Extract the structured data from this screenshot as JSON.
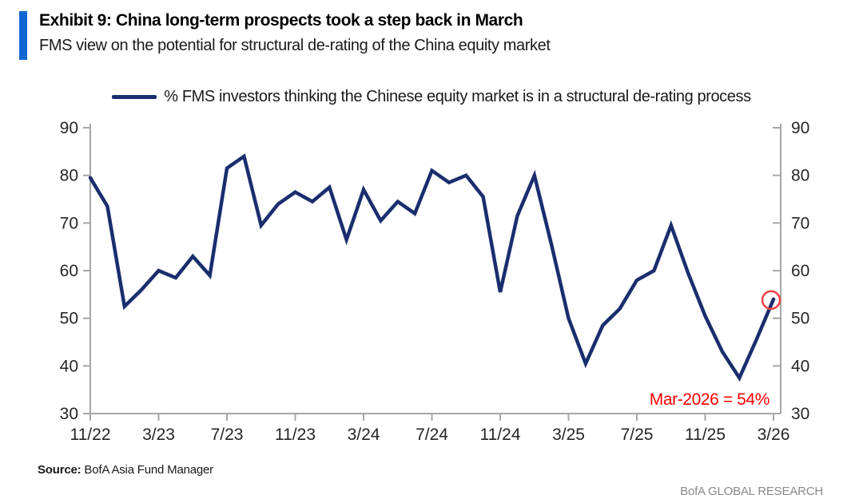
{
  "header": {
    "exhibit_title": "Exhibit 9: China long-term prospects took a step back in March",
    "subtitle": "FMS view on the potential for structural de-rating of the China equity market",
    "accent_color": "#1266D4"
  },
  "legend": {
    "label": "% FMS investors thinking the Chinese equity market is in a structural de-rating process",
    "line_color": "#1A2E6E"
  },
  "chart_data": {
    "type": "line",
    "title": "",
    "series_name": "% FMS investors thinking the Chinese equity market is in a structural de-rating process",
    "x": [
      "11/22",
      "12/22",
      "1/23",
      "2/23",
      "3/23",
      "4/23",
      "5/23",
      "6/23",
      "7/23",
      "8/23",
      "9/23",
      "10/23",
      "11/23",
      "12/23",
      "1/24",
      "2/24",
      "3/24",
      "4/24",
      "5/24",
      "6/24",
      "7/24",
      "8/24",
      "9/24",
      "10/24",
      "11/24",
      "12/24",
      "1/25",
      "2/25",
      "3/25",
      "4/25",
      "5/25",
      "6/25",
      "7/25",
      "8/25",
      "9/25",
      "10/25",
      "11/25",
      "12/25",
      "1/26",
      "2/26",
      "3/26"
    ],
    "values": [
      79.5,
      73.5,
      52.5,
      56,
      60,
      58.5,
      63,
      59,
      81.5,
      84,
      69.5,
      74,
      76.5,
      74.5,
      77.5,
      66.5,
      77,
      70.5,
      74.5,
      72,
      81,
      78.5,
      80,
      75.5,
      55.5,
      71.5,
      80,
      65.5,
      50,
      40.5,
      48.5,
      52,
      58,
      60,
      69.5,
      59.5,
      50.5,
      43,
      37.5,
      45.5,
      54
    ],
    "x_tick_labels": [
      "11/22",
      "3/23",
      "7/23",
      "11/23",
      "3/24",
      "7/24",
      "11/24",
      "3/25",
      "7/25",
      "11/25",
      "3/26"
    ],
    "y_ticks": [
      30,
      40,
      50,
      60,
      70,
      80,
      90
    ],
    "ylim": [
      30,
      90
    ],
    "dual_y_axis": true,
    "grid": false,
    "legend_position": "top-center",
    "line_color": "#1A2E6E",
    "axis_color": "#A6A6A6",
    "tick_label_color": "#262626",
    "annotation": {
      "text": "Mar-2026 = 54%",
      "color": "#F80000"
    },
    "highlight_last_point": {
      "shape": "circle-outline",
      "color": "#EF4044",
      "value": 54,
      "label": "3/26"
    }
  },
  "footer": {
    "source_label": "Source:",
    "source_text": " BofA Asia Fund Manager",
    "brand_text": "BofA GLOBAL RESEARCH"
  }
}
